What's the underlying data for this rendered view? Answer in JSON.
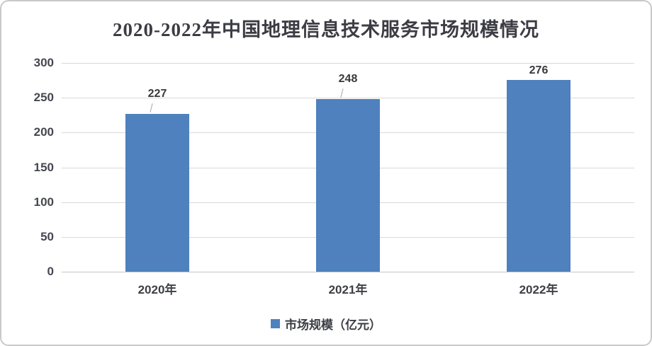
{
  "chart_data": {
    "type": "bar",
    "title": "2020-2022年中国地理信息技术服务市场规模情况",
    "categories": [
      "2020年",
      "2021年",
      "2022年"
    ],
    "series": [
      {
        "name": "市场规模（亿元）",
        "color": "#4E81BD",
        "values": [
          227,
          248,
          276
        ]
      }
    ],
    "data_labels": [
      "227",
      "248",
      "276"
    ],
    "label_leader_lines": [
      true,
      true,
      false
    ],
    "ylim": [
      0,
      300
    ],
    "yticks": [
      0,
      50,
      100,
      150,
      200,
      250,
      300
    ],
    "xlabel": "",
    "ylabel": "",
    "grid": true,
    "legend_position": "bottom"
  },
  "legend": {
    "label": "市场规模（亿元）",
    "swatch_color": "#4E81BD"
  },
  "colors": {
    "bar": "#4E81BD",
    "gridline": "#D9D9D9",
    "axis_line": "#C6C6C6",
    "title_text": "#3C3C44",
    "tick_text": "#44474F",
    "data_label_text": "#39393D",
    "leader_line": "#A6A6A6",
    "card_border": "#C9C9C9",
    "background": "#FFFFFF"
  }
}
